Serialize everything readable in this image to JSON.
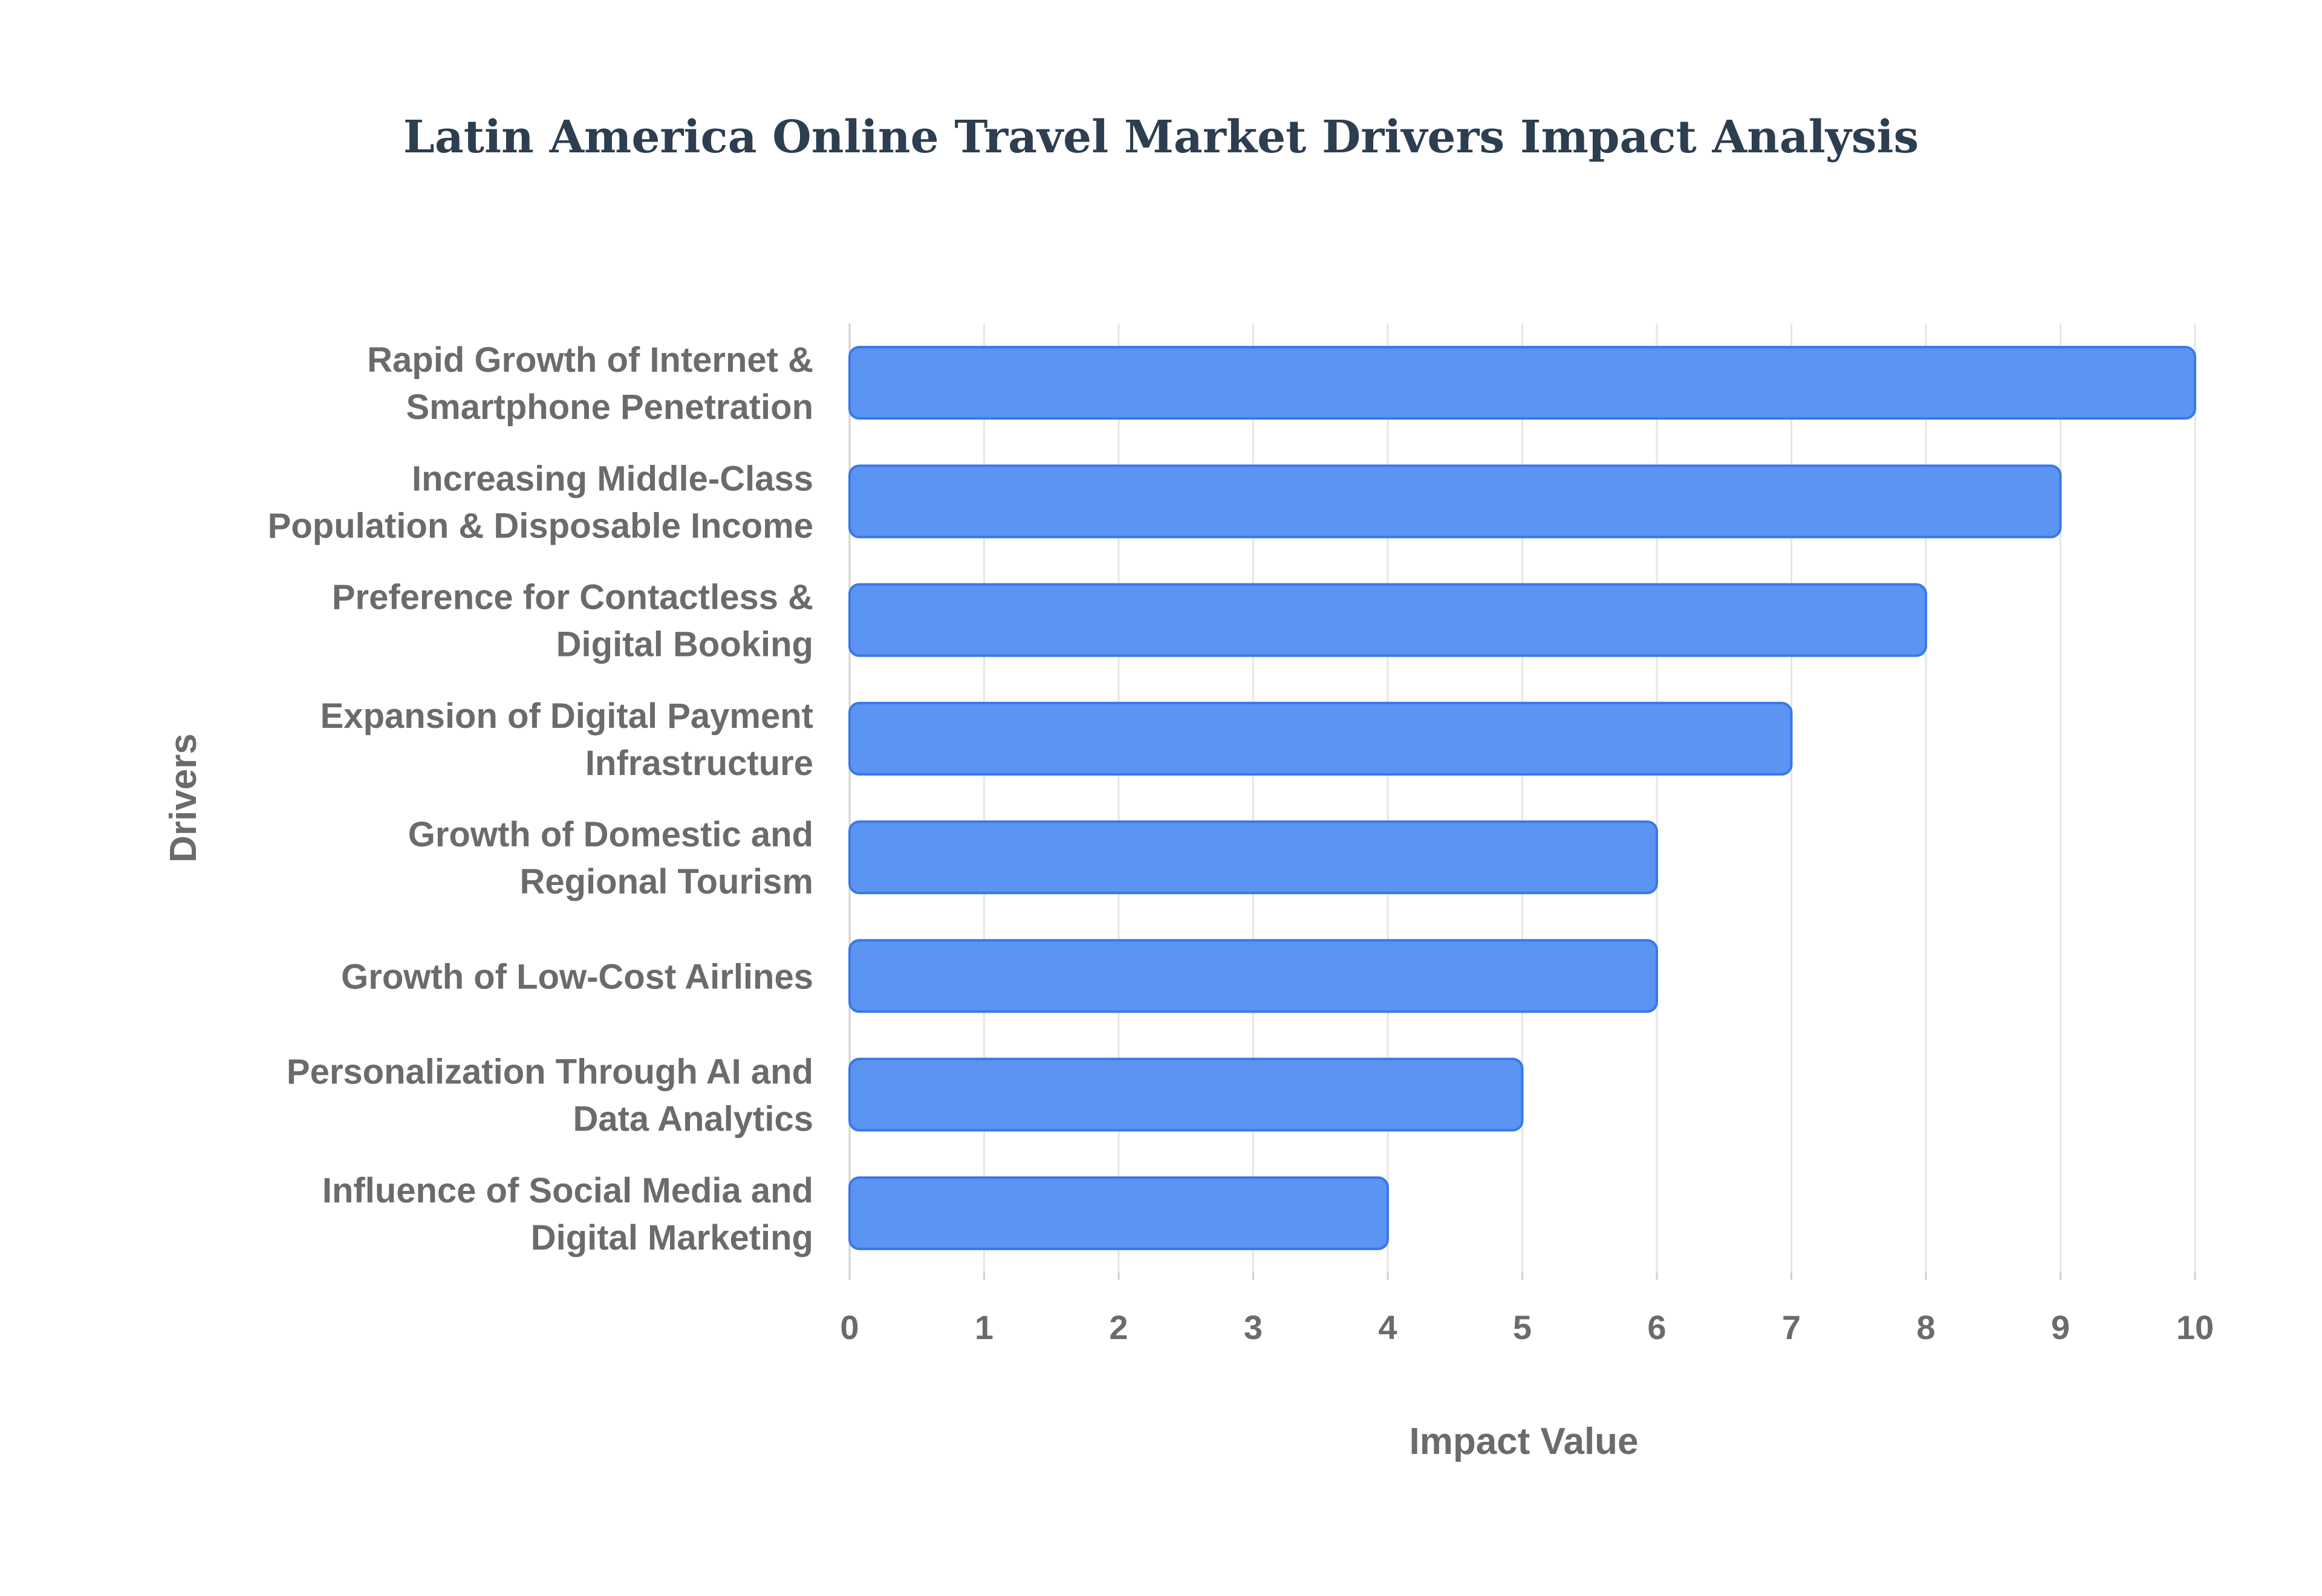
{
  "colors": {
    "bar_fill": "#5B94F3",
    "bar_stroke": "#3A78E7",
    "title": "#2C3E50",
    "axis_text": "#6B6B6B",
    "grid": "#E6E6E6",
    "axis_line": "#D0D0D0"
  },
  "chart_data": {
    "type": "bar",
    "orientation": "horizontal",
    "title": "Latin America Online Travel Market Drivers Impact Analysis",
    "xlabel": "Impact Value",
    "ylabel": "Drivers",
    "xlim": [
      0,
      10
    ],
    "x_ticks": [
      "0",
      "1",
      "2",
      "3",
      "4",
      "5",
      "6",
      "7",
      "8",
      "9",
      "10"
    ],
    "grid": true,
    "categories": [
      [
        "Rapid Growth of Internet &",
        "Smartphone Penetration"
      ],
      [
        "Increasing Middle-Class",
        "Population & Disposable Income"
      ],
      [
        "Preference for Contactless &",
        "Digital Booking"
      ],
      [
        "Expansion of Digital Payment",
        "Infrastructure"
      ],
      [
        "Growth of Domestic and",
        "Regional Tourism"
      ],
      [
        "Growth of Low-Cost Airlines"
      ],
      [
        "Personalization Through AI and",
        "Data Analytics"
      ],
      [
        "Influence of Social Media and",
        "Digital Marketing"
      ]
    ],
    "values": [
      10,
      9,
      8,
      7,
      6,
      6,
      5,
      4
    ]
  }
}
